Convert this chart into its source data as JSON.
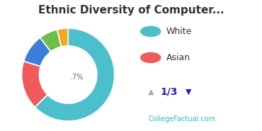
{
  "title": "Ethnic Diversity of Computer...",
  "slices": [
    62.7,
    17.0,
    10.0,
    6.5,
    3.8
  ],
  "colors": [
    "#4BBFCC",
    "#F05A5A",
    "#3B7DD8",
    "#6CC04A",
    "#F5A623"
  ],
  "center_label": ".7%",
  "legend_items": [
    [
      "White",
      "#4BBFCC"
    ],
    [
      "Asian",
      "#F05A5A"
    ]
  ],
  "legend_fontsize": 9,
  "title_fontsize": 11,
  "nav_text": "1/3",
  "watermark": "CollegeFactual.com",
  "bg_color": "#ffffff",
  "text_color": "#333333",
  "nav_blue": "#2222BB",
  "nav_gray": "#AAAAAA",
  "watermark_color": "#29BFBF"
}
